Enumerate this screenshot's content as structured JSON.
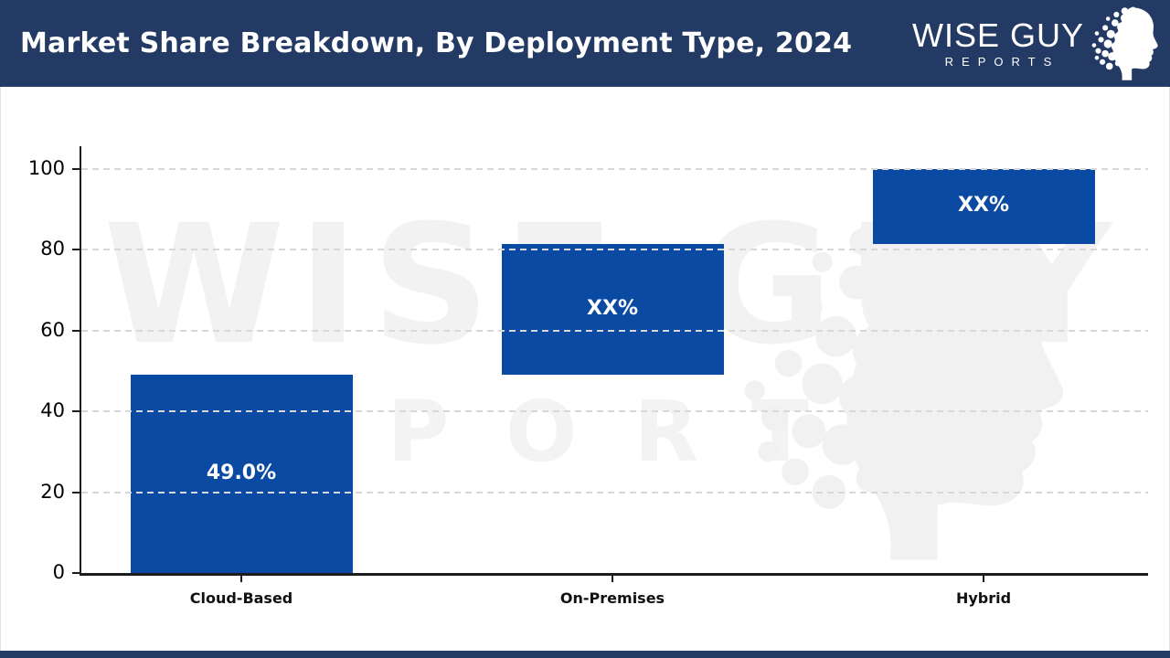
{
  "header": {
    "title": "Market Share Breakdown, By Deployment Type, 2024",
    "logo": {
      "line1": "WISE GUY",
      "line2": "REPORTS"
    }
  },
  "watermark": {
    "line1": "WISE GUY",
    "line2": "REPORTS"
  },
  "chart_data": {
    "type": "bar",
    "subtype": "waterfall",
    "title": "Market Share Breakdown, By Deployment Type, 2024",
    "categories": [
      "Cloud-Based",
      "On-Premises",
      "Hybrid"
    ],
    "bars": [
      {
        "category": "Cloud-Based",
        "label": "49.0%",
        "start": 0,
        "end": 49
      },
      {
        "category": "On-Premises",
        "label": "XX%",
        "start": 49,
        "end": 81.5
      },
      {
        "category": "Hybrid",
        "label": "XX%",
        "start": 81.5,
        "end": 100
      }
    ],
    "yticks": [
      0,
      20,
      40,
      60,
      80,
      100
    ],
    "ylim": [
      0,
      105.7
    ],
    "grid": "dashed-horizontal",
    "legend": "none",
    "bar_color": "#0b4aa2",
    "value_label_color": "#ffffff",
    "axis_color": "#1c1c1c",
    "grid_color": "#d8d8d8"
  },
  "colors": {
    "header_bg": "#233a64",
    "footer_bg": "#233a64",
    "bar": "#0b4aa2",
    "watermark": "#f2f2f2"
  }
}
